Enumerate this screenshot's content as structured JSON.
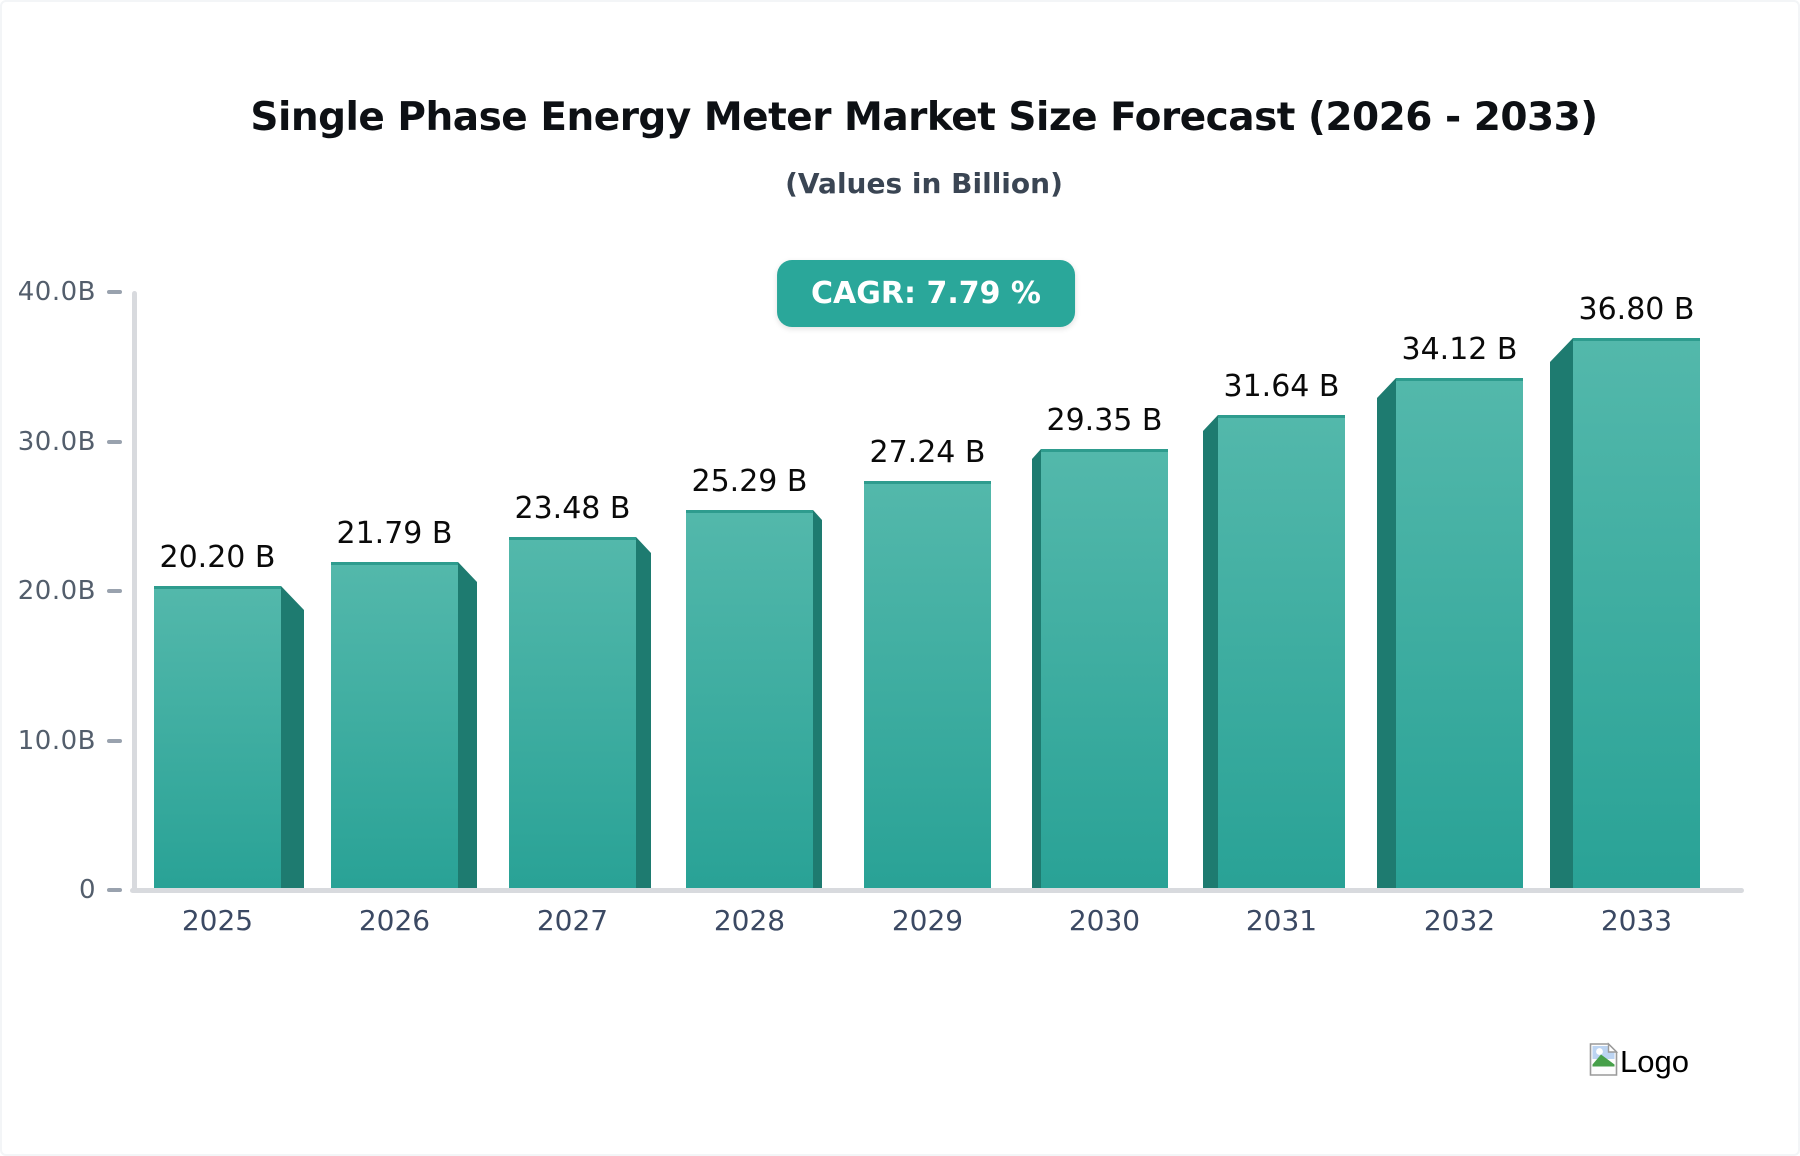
{
  "chart_data": {
    "type": "bar",
    "title": "Single Phase Energy Meter Market Size Forecast (2026 - 2033)",
    "subtitle": "(Values in Billion)",
    "cagr_badge": "CAGR: 7.79 %",
    "categories": [
      "2025",
      "2026",
      "2027",
      "2028",
      "2029",
      "2030",
      "2031",
      "2032",
      "2033"
    ],
    "values": [
      20.2,
      21.79,
      23.48,
      25.29,
      27.24,
      29.35,
      31.64,
      34.12,
      36.8
    ],
    "value_labels": [
      "20.20 B",
      "21.79 B",
      "23.48 B",
      "25.29 B",
      "27.24 B",
      "29.35 B",
      "31.64 B",
      "34.12 B",
      "36.80 B"
    ],
    "unit": "B",
    "ylim": [
      0,
      40
    ],
    "y_ticks": [
      {
        "value": 40,
        "label": "40.0B"
      },
      {
        "value": 30,
        "label": "30.0B"
      },
      {
        "value": 20,
        "label": "20.0B"
      },
      {
        "value": 10,
        "label": "10.0B"
      },
      {
        "value": 0,
        "label": "0"
      }
    ],
    "grid": "off",
    "legend": "none",
    "style": "3d-column",
    "colors": {
      "bar_face_top": "#53b8ab",
      "bar_face_bottom": "#29a296",
      "bar_top_edge": "#2e9c8e",
      "bar_side": "#1e7b70",
      "badge_bg": "#2aa79a",
      "badge_text": "#ffffff",
      "axis_line": "#d8dade",
      "tick_dash": "#99a2ae",
      "y_label": "#535e6c",
      "x_label": "#3b4963",
      "value_label": "#0a0a0a"
    }
  },
  "footer": {
    "logo_text": "Logo"
  }
}
